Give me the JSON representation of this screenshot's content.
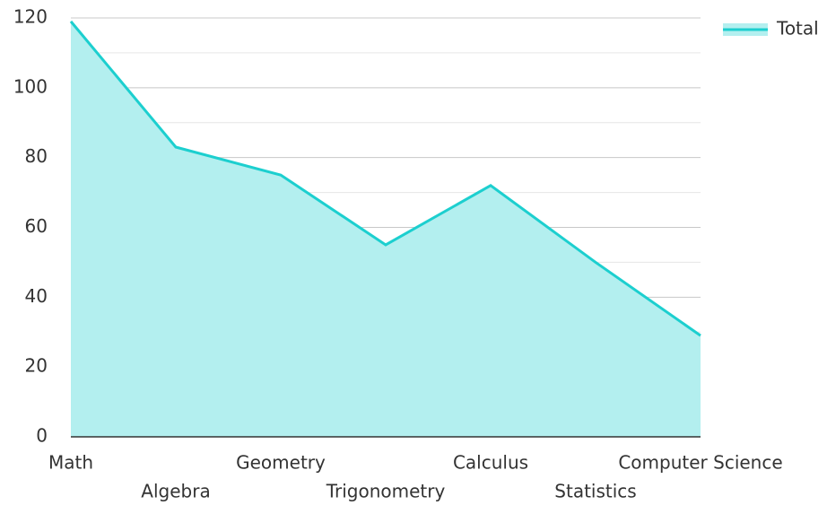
{
  "chart_data": {
    "type": "area",
    "categories": [
      "Math",
      "Algebra",
      "Geometry",
      "Trigonometry",
      "Calculus",
      "Statistics",
      "Computer Science"
    ],
    "series": [
      {
        "name": "Total",
        "color": "#1ccfcf",
        "fill": "#b3efef",
        "values": [
          119,
          83,
          75,
          55,
          72,
          50,
          29
        ]
      }
    ],
    "ylim": [
      0,
      120
    ],
    "yticks": [
      0,
      20,
      40,
      60,
      80,
      100,
      120
    ],
    "yticks_minor": [
      10,
      30,
      50,
      70,
      90,
      110
    ],
    "grid": true,
    "legend": "top-right"
  }
}
